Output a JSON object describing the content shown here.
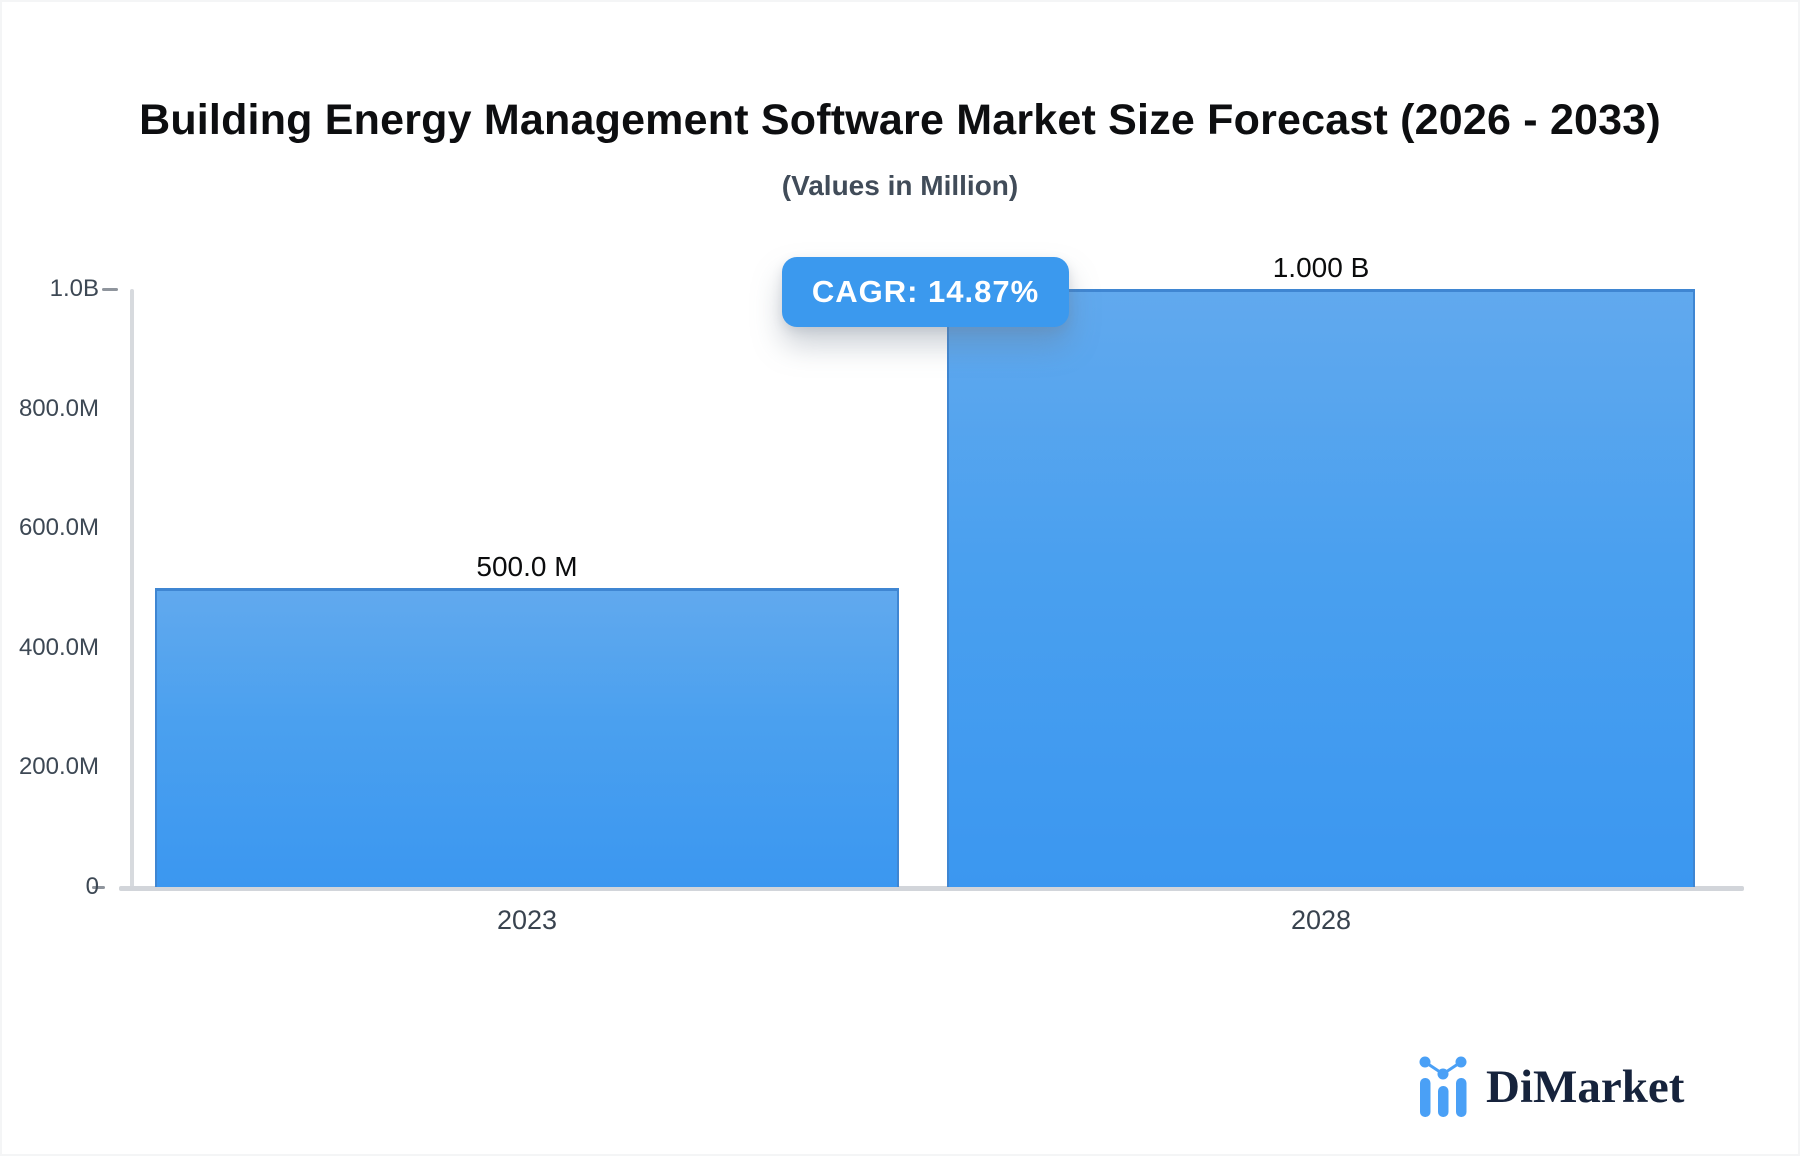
{
  "page": {
    "title": "Building Energy Management Software Market Size Forecast (2026 - 2033)",
    "subtitle": "(Values in Million)",
    "cagr_label": "CAGR: 14.87%",
    "brand": {
      "name": "DiMarket"
    },
    "colors": {
      "bar_gradient_top": "#61a9ee",
      "bar_gradient_bottom": "#3b97f0",
      "bar_border": "#3f86d2",
      "badge_bg": "#3b99ee",
      "badge_text": "#ffffff",
      "axis_line": "#d2d5da",
      "tick_label": "#3d4854",
      "brand_blue": "#4aa0f6",
      "brand_navy": "#16233c"
    }
  },
  "chart_data": {
    "type": "bar",
    "categories": [
      "2023",
      "2028"
    ],
    "values": [
      500,
      1000
    ],
    "unit": "Million",
    "bar_value_labels": [
      "500.0 M",
      "1.000 B"
    ],
    "title": "Building Energy Management Software Market Size Forecast (2026 - 2033)",
    "subtitle": "(Values in Million)",
    "xlabel": "",
    "ylabel": "",
    "ylim": [
      0,
      1000
    ],
    "y_ticks": [
      "1.0B",
      "800.0M",
      "600.0M",
      "400.0M",
      "200.0M",
      "0"
    ],
    "grid": false,
    "legend": false,
    "annotations": [
      {
        "type": "badge",
        "text": "CAGR: 14.87%"
      }
    ]
  }
}
